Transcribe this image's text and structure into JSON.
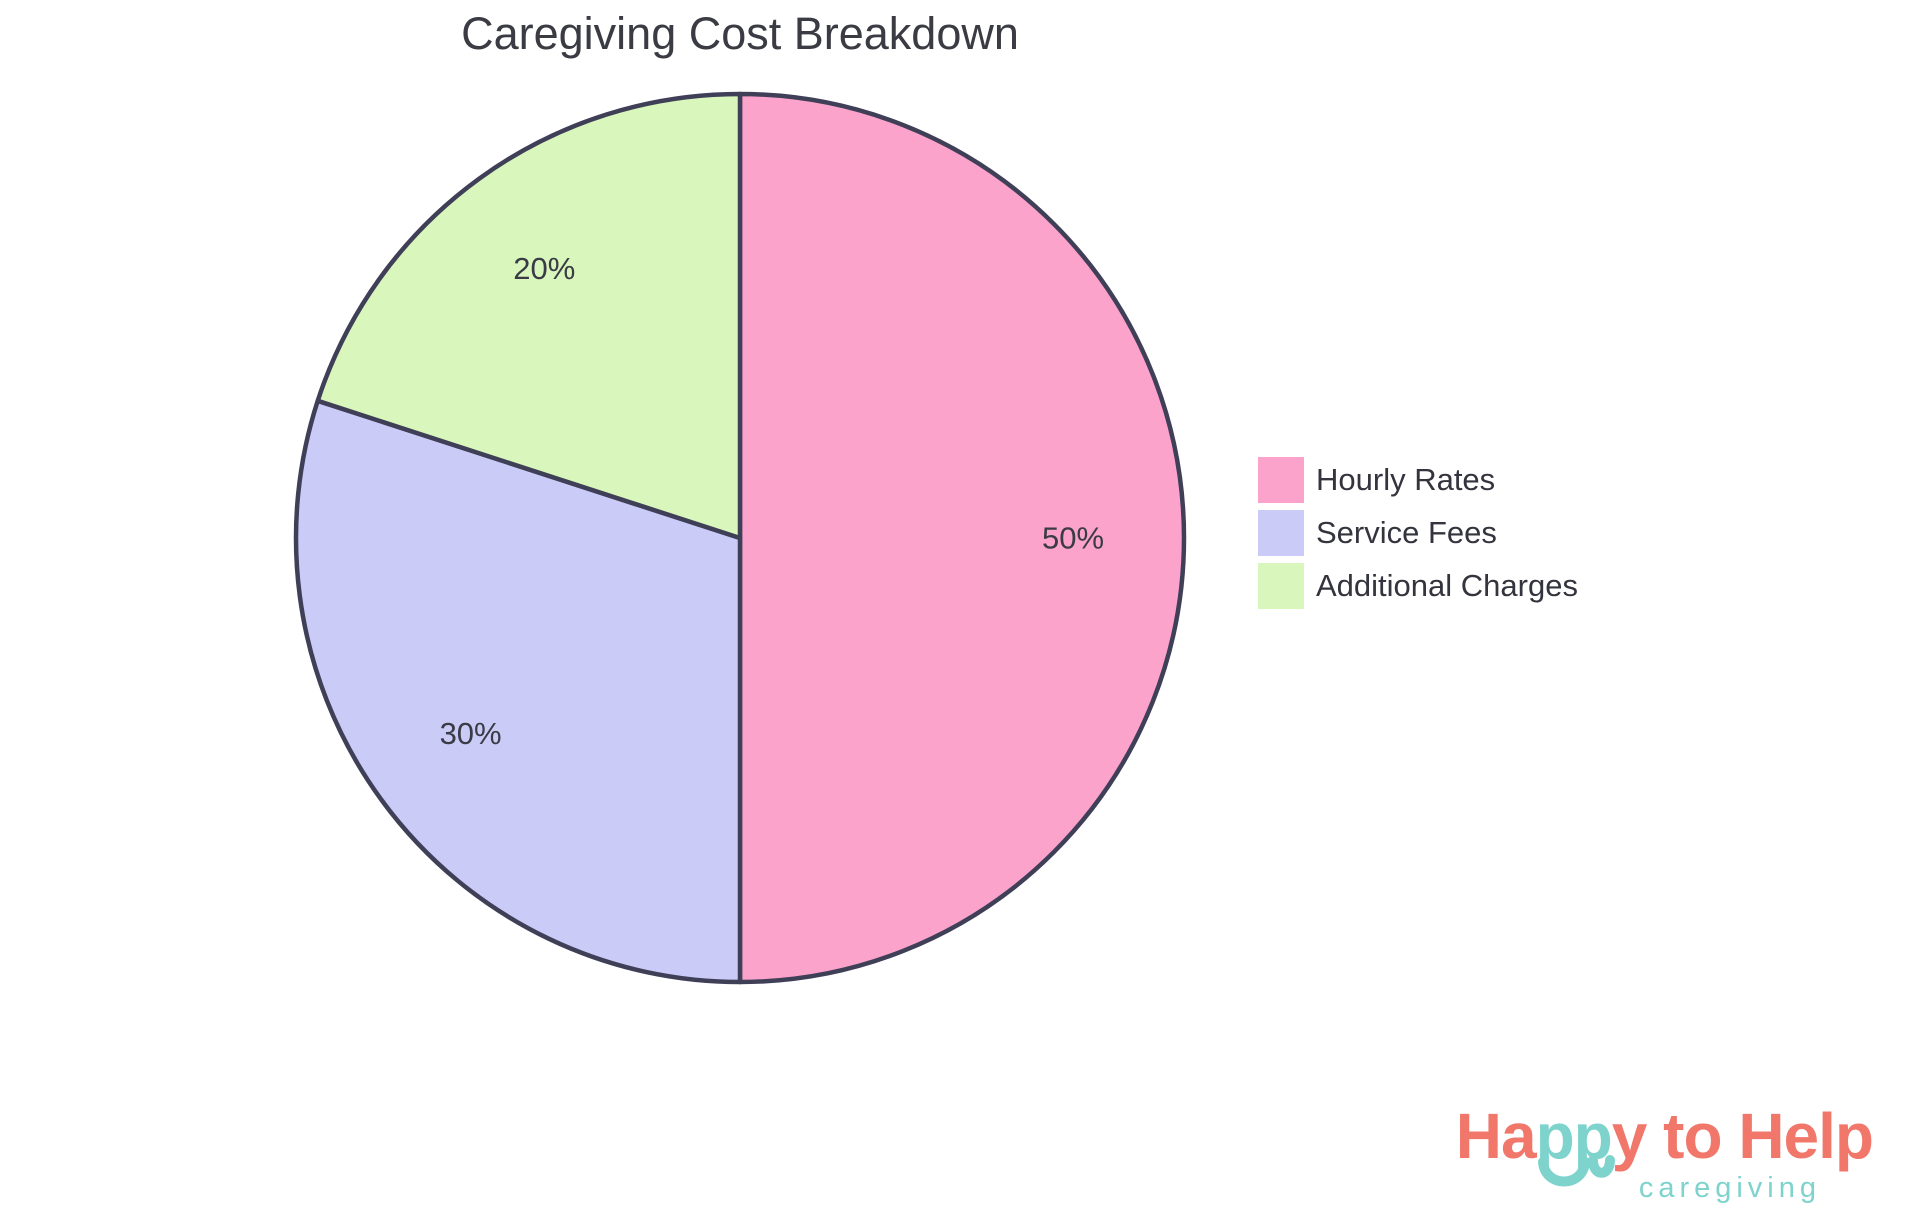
{
  "page": {
    "background": "#FFFFFF"
  },
  "chart_data": {
    "type": "pie",
    "title": "Caregiving Cost Breakdown",
    "categories": [
      "Hourly Rates",
      "Service Fees",
      "Additional Charges"
    ],
    "values": [
      50,
      30,
      20
    ],
    "pct_labels": [
      "50%",
      "30%",
      "20%"
    ],
    "colors": [
      "#FCA3CC",
      "#CACBF7",
      "#D9F7BC"
    ],
    "slice_border_color": "#3F3F58",
    "label_color": "#3A3B45",
    "title_color": "#3A3B43",
    "legend_text_color": "#33343D",
    "legend_position": "right",
    "start_angle_deg": 0,
    "direction": "clockwise"
  },
  "logo": {
    "parts": [
      {
        "text": "Ha",
        "color": "#F1776B"
      },
      {
        "text": "pp",
        "color": "#7ED3CD"
      },
      {
        "text": "y to Help",
        "color": "#F1776B"
      }
    ],
    "subtitle": "caregiving",
    "subtitle_color": "#7ED3CD",
    "smile_color": "#7ED3CD"
  }
}
